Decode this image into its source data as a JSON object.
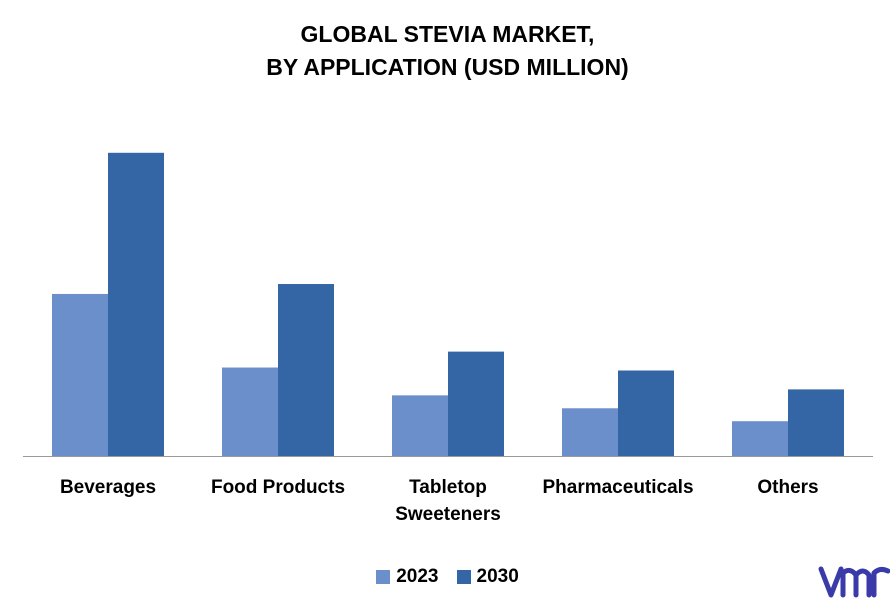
{
  "title_line1": "GLOBAL STEVIA MARKET,",
  "title_line2": "BY APPLICATION (USD MILLION)",
  "logo_text": "vmr",
  "colors": {
    "2023": "#6a8fca",
    "2030": "#3465a4",
    "axis": "#999999",
    "logo": "#3a3aa8"
  },
  "chart_data": {
    "type": "bar",
    "title": "GLOBAL STEVIA MARKET, BY APPLICATION (USD MILLION)",
    "categories": [
      [
        "Beverages"
      ],
      [
        "Food Products"
      ],
      [
        "Tabletop",
        "Sweeteners"
      ],
      [
        "Pharmaceuticals"
      ],
      [
        "Others"
      ]
    ],
    "series": [
      {
        "name": "2023",
        "values": [
          163,
          89,
          61,
          48,
          35
        ]
      },
      {
        "name": "2030",
        "values": [
          305,
          173,
          105,
          86,
          67
        ]
      }
    ],
    "xlabel": "",
    "ylabel": "",
    "ylim": [
      0,
      340
    ],
    "grid": false,
    "legend": "bottom-center"
  }
}
